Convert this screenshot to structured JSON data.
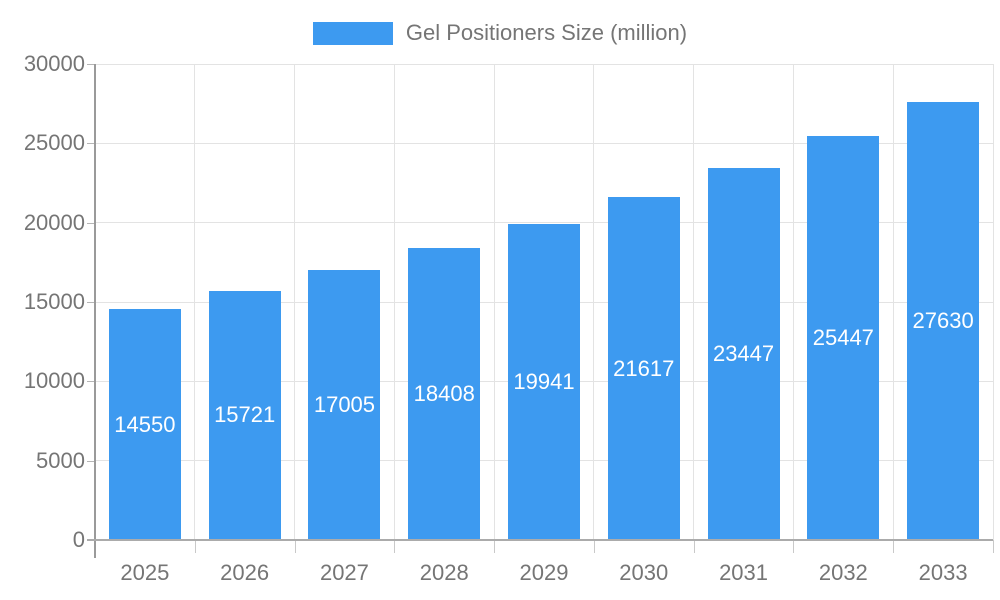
{
  "chart_data": {
    "type": "bar",
    "title": "Gel Positioners Size (million)",
    "legend": [
      "Gel Positioners Size (million)"
    ],
    "legend_position": "top-center",
    "categories": [
      "2025",
      "2026",
      "2027",
      "2028",
      "2029",
      "2030",
      "2031",
      "2032",
      "2033"
    ],
    "values": [
      14550,
      15721,
      17005,
      18408,
      19941,
      21617,
      23447,
      25447,
      27630
    ],
    "xlabel": "",
    "ylabel": "",
    "ylim": [
      0,
      30000
    ],
    "ytick_step": 5000,
    "ytick_labels": [
      "0",
      "5000",
      "10000",
      "15000",
      "20000",
      "25000",
      "30000"
    ],
    "grid": true,
    "value_labels_inside_bars": true,
    "colors": {
      "bar": "#3d9af0",
      "bar_value_text": "#ffffff",
      "axis_text": "#757575",
      "gridline": "#e3e3e3",
      "y_axis_line": "#9a9a9a",
      "x_axis_line": "#ababab"
    }
  }
}
